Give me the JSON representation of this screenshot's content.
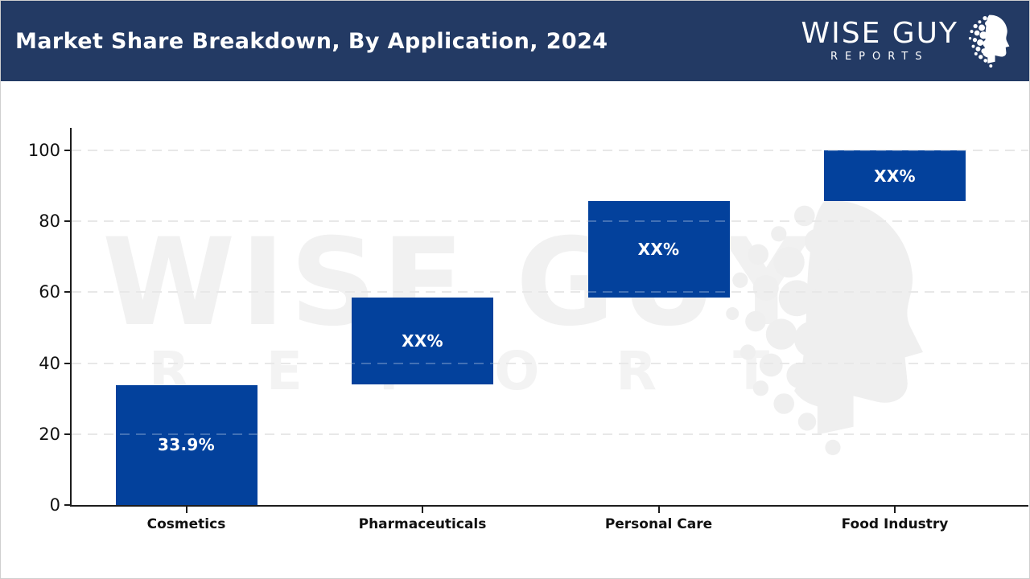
{
  "header": {
    "title": "Market Share Breakdown, By Application, 2024",
    "logo": {
      "line1": "WISE GUY",
      "line2": "REPORTS"
    }
  },
  "watermark": {
    "line1": "WISE GUY",
    "line2": "R E P O R T S"
  },
  "chart_data": {
    "type": "bar",
    "subtype": "waterfall",
    "title": "Market Share Breakdown, By Application, 2024",
    "categories": [
      "Cosmetics",
      "Pharmaceuticals",
      "Personal Care",
      "Food Industry"
    ],
    "segments": [
      {
        "category": "Cosmetics",
        "start": 0,
        "end": 33.9,
        "label": "33.9%"
      },
      {
        "category": "Pharmaceuticals",
        "start": 33.9,
        "end": 58.5,
        "label": "XX%"
      },
      {
        "category": "Personal Care",
        "start": 58.5,
        "end": 85.7,
        "label": "XX%"
      },
      {
        "category": "Food Industry",
        "start": 85.7,
        "end": 100,
        "label": "XX%"
      }
    ],
    "xlabel": "",
    "ylabel": "",
    "ylim": [
      0,
      100
    ],
    "yticks": [
      0,
      20,
      40,
      60,
      80,
      100
    ],
    "grid": "horizontal-dashed",
    "legend": "none"
  },
  "colors": {
    "header_bg": "#233A64",
    "bar": "#03419C",
    "bar_label": "#ffffff",
    "axis": "#1c1c1c",
    "grid": "#e0e0e0",
    "text": "#111111",
    "watermark": "#f1f1f1",
    "watermark2": "#f3f3f3",
    "panel_border": "#cfcfcf"
  }
}
